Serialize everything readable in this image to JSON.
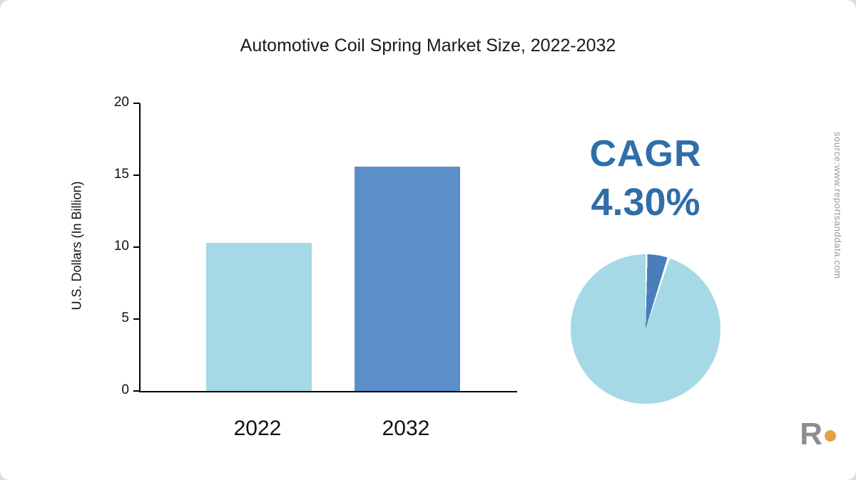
{
  "chart_data": {
    "type": "bar",
    "title": "Automotive Coil Spring Market Size, 2022-2032",
    "xlabel": "",
    "ylabel": "U.S. Dollars (In Billion)",
    "categories": [
      "2022",
      "2032"
    ],
    "values": [
      10.3,
      15.6
    ],
    "ylim": [
      0,
      20
    ],
    "yticks": [
      0,
      5,
      10,
      15,
      20
    ],
    "bar_colors": [
      "#a5d9e5",
      "#5b8fc9"
    ],
    "grid": false,
    "legend": false
  },
  "cagr": {
    "label": "CAGR",
    "value": "4.30%",
    "percent": 4.3,
    "text_color": "#2f6ea8",
    "pie_slice_color": "#4a7ebb",
    "pie_rest_color": "#a5d9e5"
  },
  "source": "source:www.reportsanddata.com",
  "logo": {
    "letter": "R",
    "letter_color": "#8d8d8d",
    "dot_color": "#e2a244"
  }
}
